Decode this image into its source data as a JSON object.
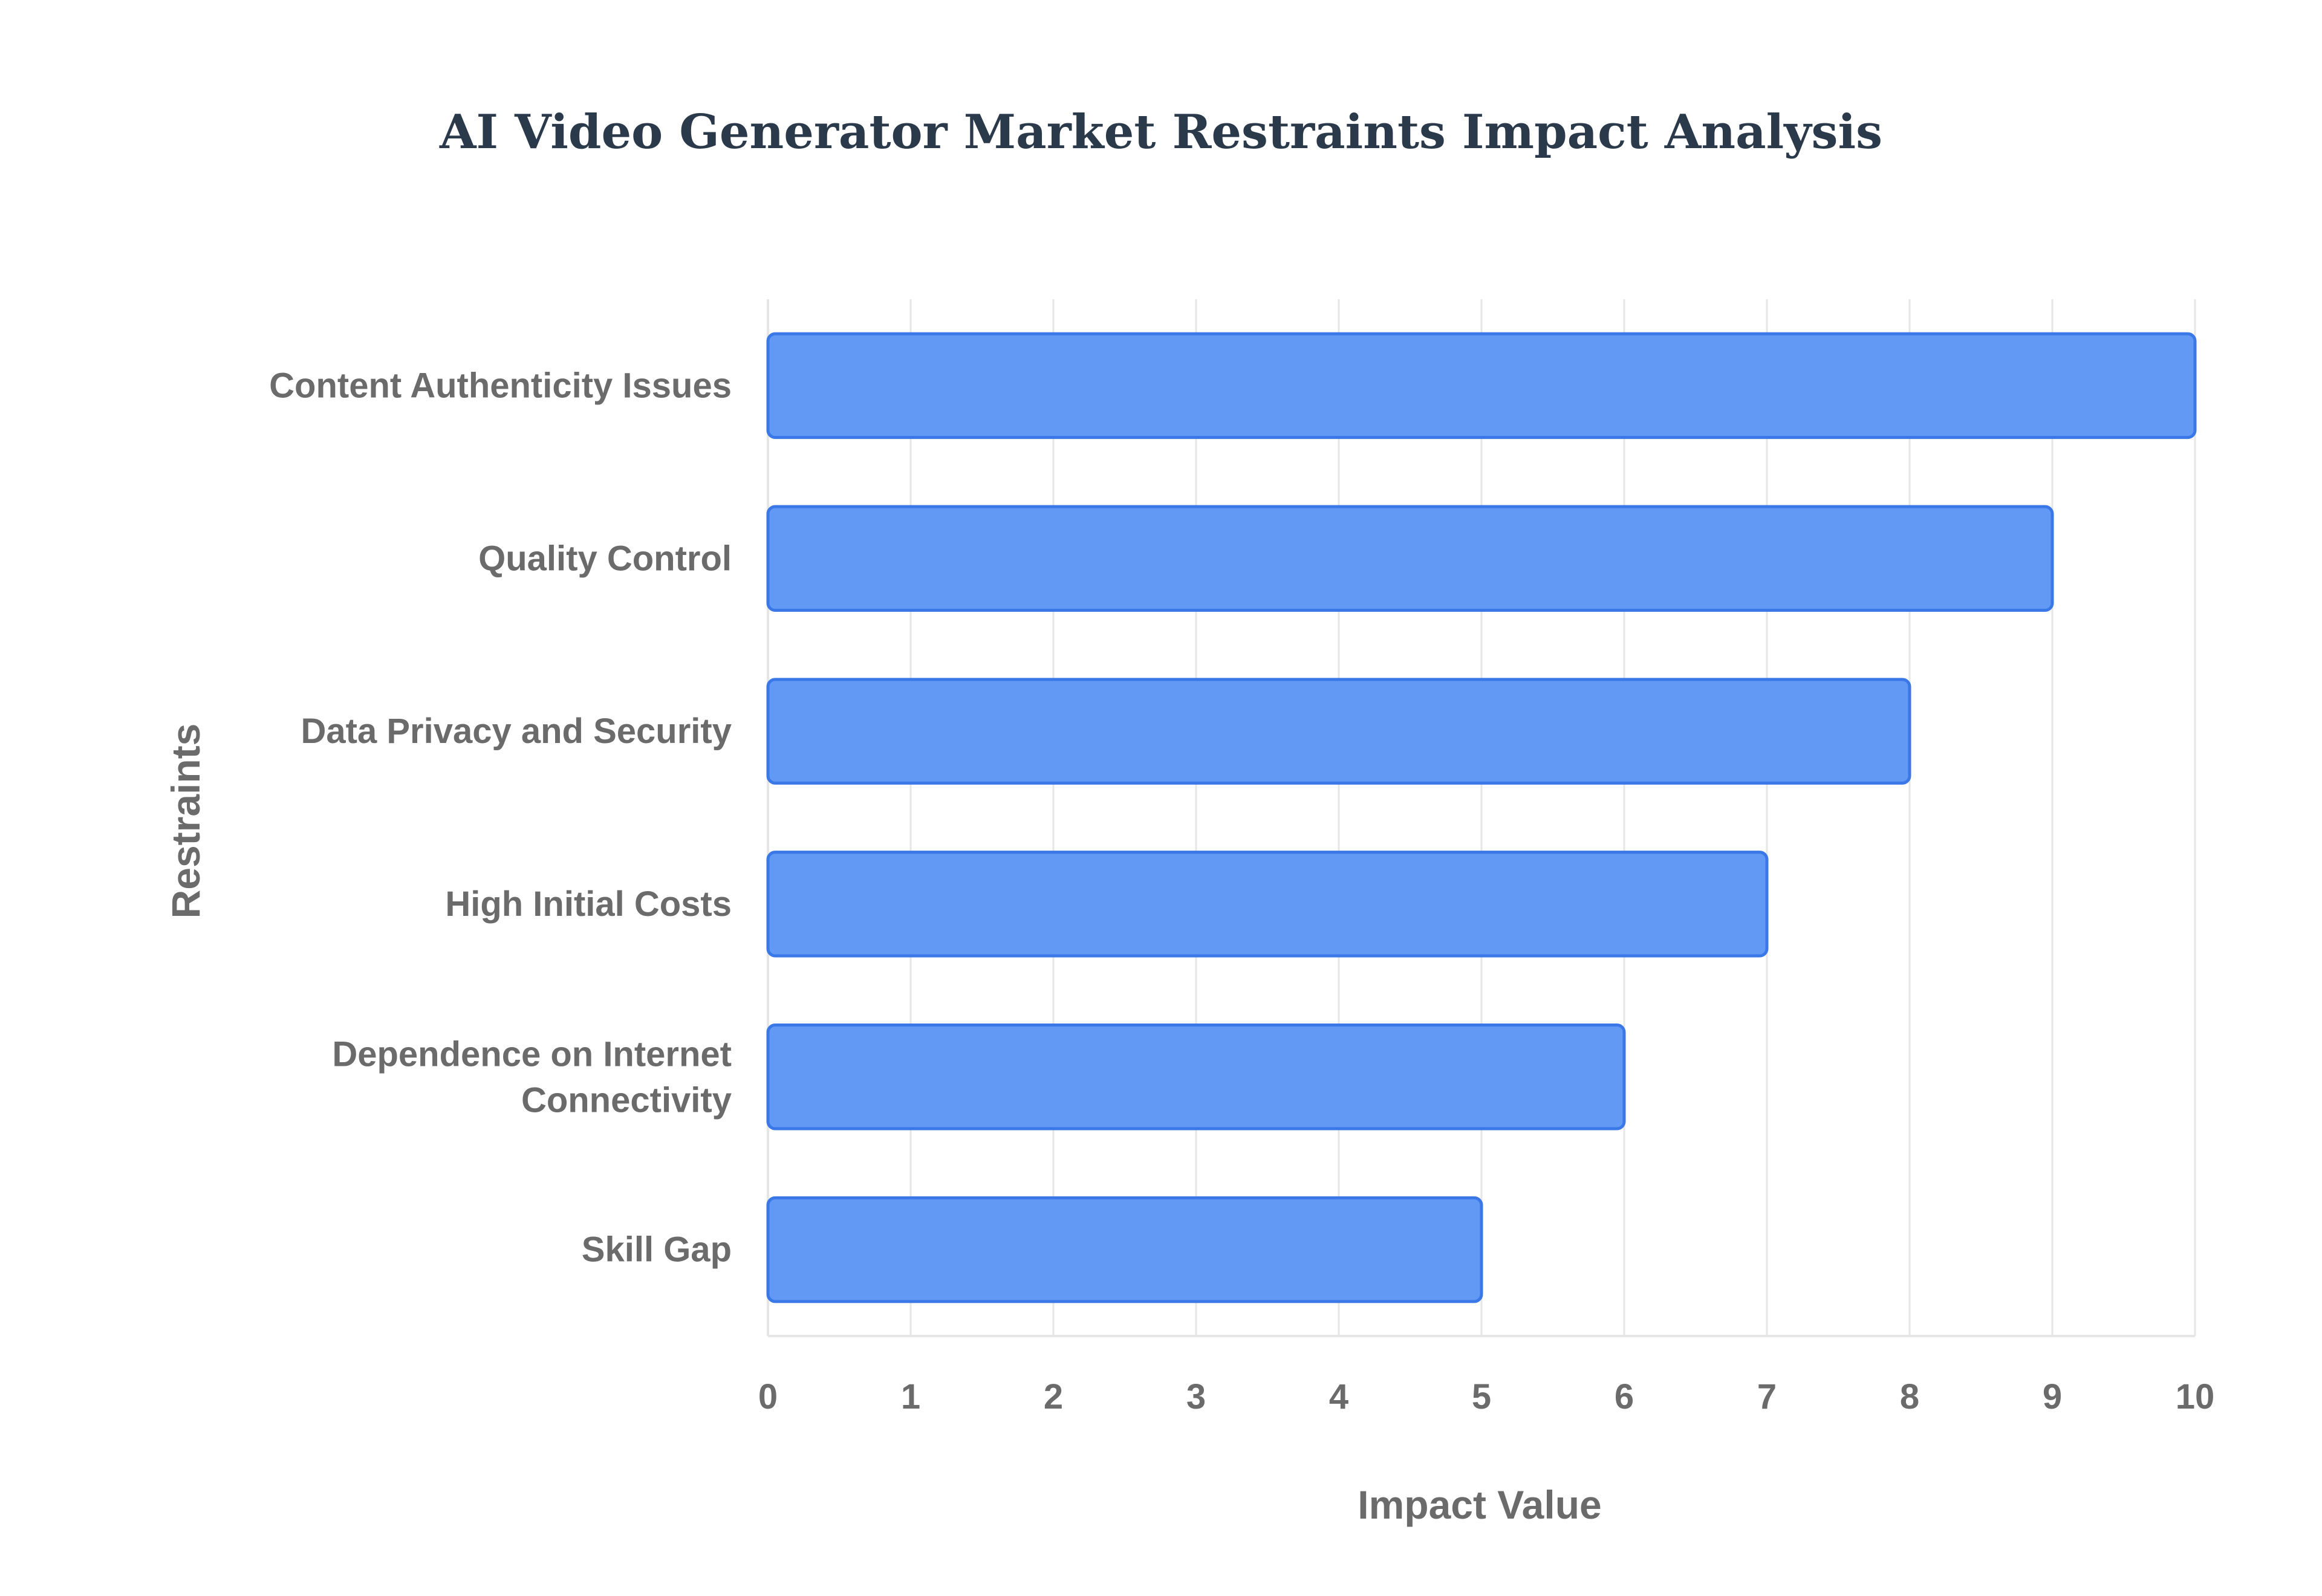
{
  "chart_data": {
    "type": "bar",
    "orientation": "horizontal",
    "title": "AI Video Generator Market Restraints Impact Analysis",
    "xlabel": "Impact Value",
    "ylabel": "Restraints",
    "categories": [
      "Content Authenticity Issues",
      "Quality Control",
      "Data Privacy and Security",
      "High Initial Costs",
      "Dependence on Internet Connectivity",
      "Skill Gap"
    ],
    "values": [
      10,
      9,
      8,
      7,
      6,
      5
    ],
    "xlim": [
      0,
      10
    ],
    "xticks": [
      "0",
      "1",
      "2",
      "3",
      "4",
      "5",
      "6",
      "7",
      "8",
      "9",
      "10"
    ],
    "grid": true,
    "legend": "none",
    "colors": {
      "bar_fill": "#6199f5",
      "bar_stroke": "#3b78e7",
      "grid": "#e6e6e6",
      "text": "#6b6b6b",
      "title": "#2b3a4a"
    }
  }
}
